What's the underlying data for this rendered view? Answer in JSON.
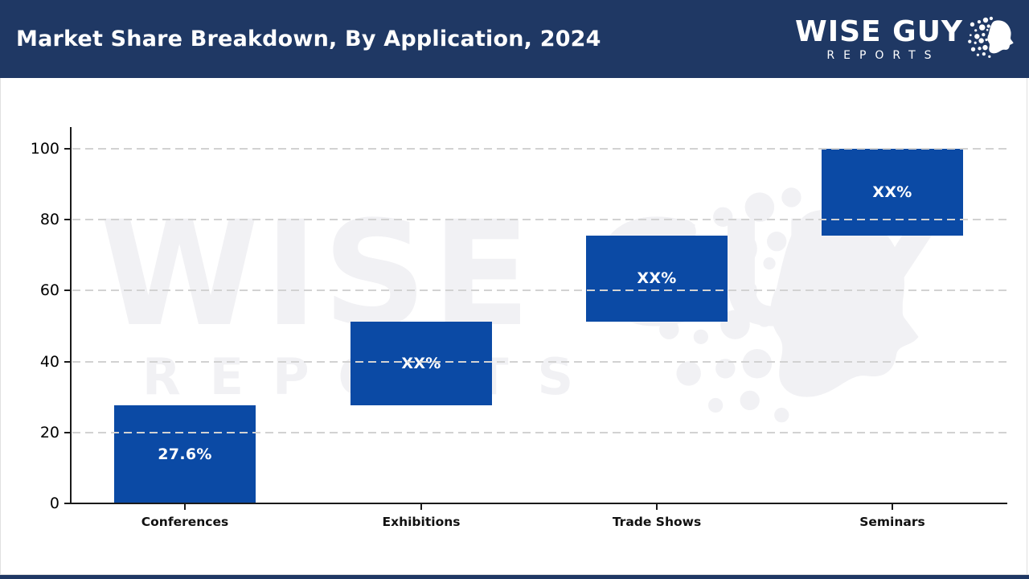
{
  "header": {
    "title": "Market Share Breakdown, By Application, 2024"
  },
  "logo": {
    "line1": "WISE GUY",
    "line2": "REPORTS"
  },
  "watermark": {
    "line1": "WISE GUY",
    "line2": "REPORTS"
  },
  "colors": {
    "header_bg": "#1f3864",
    "bar_blue": "#0b4aa5",
    "watermark_gray": "#f1f1f4",
    "gridline_gray": "#d2d2d2",
    "axis_black": "#1a1a1a",
    "bar_label_white": "#ffffff"
  },
  "chart_data": {
    "type": "bar",
    "subtype": "waterfall",
    "title": "Market Share Breakdown, By Application, 2024",
    "categories": [
      "Conferences",
      "Exhibitions",
      "Trade Shows",
      "Seminars"
    ],
    "segments": [
      {
        "category": "Conferences",
        "start": 0,
        "end": 27.6,
        "label": "27.6%"
      },
      {
        "category": "Exhibitions",
        "start": 27.6,
        "end": 51.3,
        "label": "XX%"
      },
      {
        "category": "Trade Shows",
        "start": 51.3,
        "end": 75.6,
        "label": "XX%"
      },
      {
        "category": "Seminars",
        "start": 75.6,
        "end": 100,
        "label": "XX%"
      }
    ],
    "xlabel": "",
    "ylabel": "",
    "ylim": [
      0,
      100
    ],
    "yticks": [
      0,
      20,
      40,
      60,
      80,
      100
    ],
    "grid": "dashed-horizontal",
    "legend": "none"
  }
}
